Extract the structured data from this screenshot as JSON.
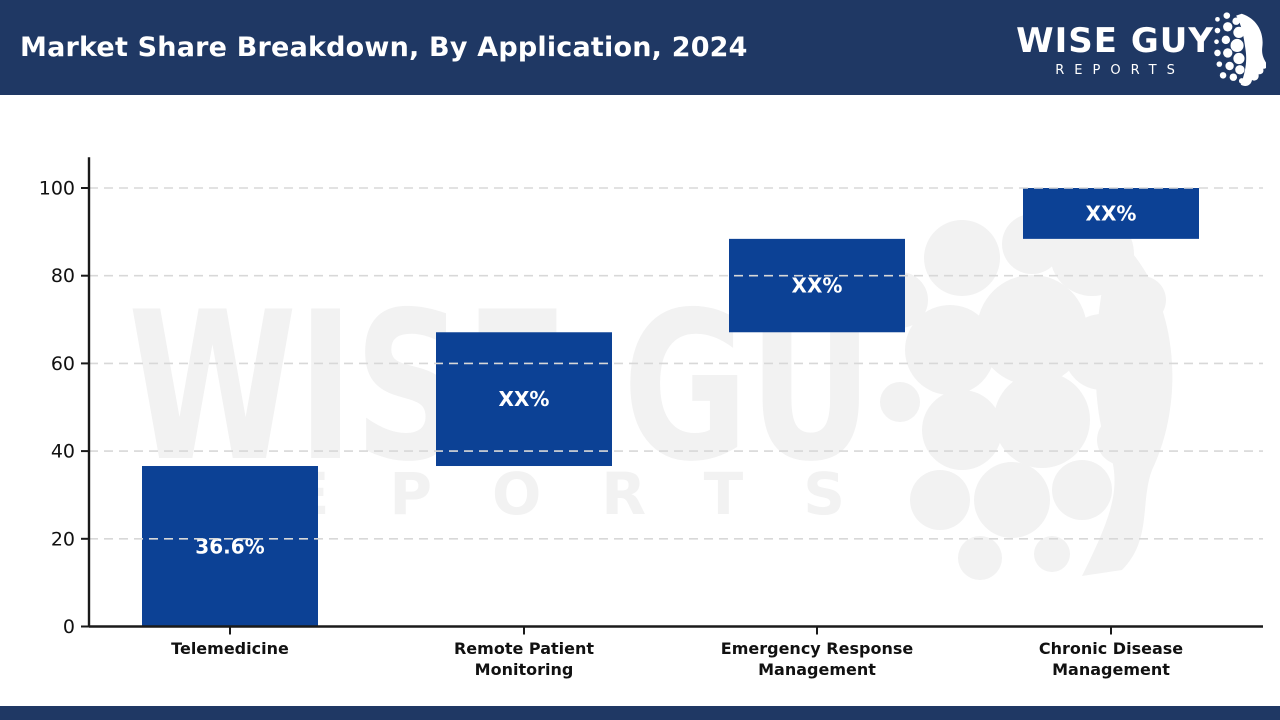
{
  "header": {
    "title": "Market Share Breakdown, By Application, 2024",
    "logo_line1": "WISE GUY",
    "logo_line2": "REPORTS"
  },
  "watermark": {
    "line1": "WISE GU",
    "line2": "REPORTS"
  },
  "colors": {
    "navy": "#1f3864",
    "bar": "#0c4195",
    "grid": "#d8d8d8",
    "axis": "#1a1a1a",
    "tick_text": "#111111",
    "bar_label_text": "#ffffff",
    "watermark": "#f2f2f2"
  },
  "chart_data": {
    "type": "bar",
    "variant": "waterfall",
    "title": "Market Share Breakdown, By Application, 2024",
    "xlabel": "",
    "ylabel": "",
    "categories": [
      [
        "Telemedicine"
      ],
      [
        "Remote Patient",
        "Monitoring"
      ],
      [
        "Emergency Response",
        "Management"
      ],
      [
        "Chronic Disease",
        "Management"
      ]
    ],
    "segments": [
      {
        "name": "Telemedicine",
        "start": 0,
        "end": 36.6,
        "size": 36.6,
        "label": "36.6%"
      },
      {
        "name": "Remote Patient Monitoring",
        "start": 36.6,
        "end": 67.1,
        "size": 30.5,
        "label": "XX%"
      },
      {
        "name": "Emergency Response Management",
        "start": 67.1,
        "end": 88.4,
        "size": 21.3,
        "label": "XX%"
      },
      {
        "name": "Chronic Disease Management",
        "start": 88.4,
        "end": 100,
        "size": 11.6,
        "label": "XX%"
      }
    ],
    "yticks": [
      0,
      20,
      40,
      60,
      80,
      100
    ],
    "ylim": [
      0,
      107
    ],
    "grid": true,
    "grid_style": "dashed",
    "legend": false
  }
}
